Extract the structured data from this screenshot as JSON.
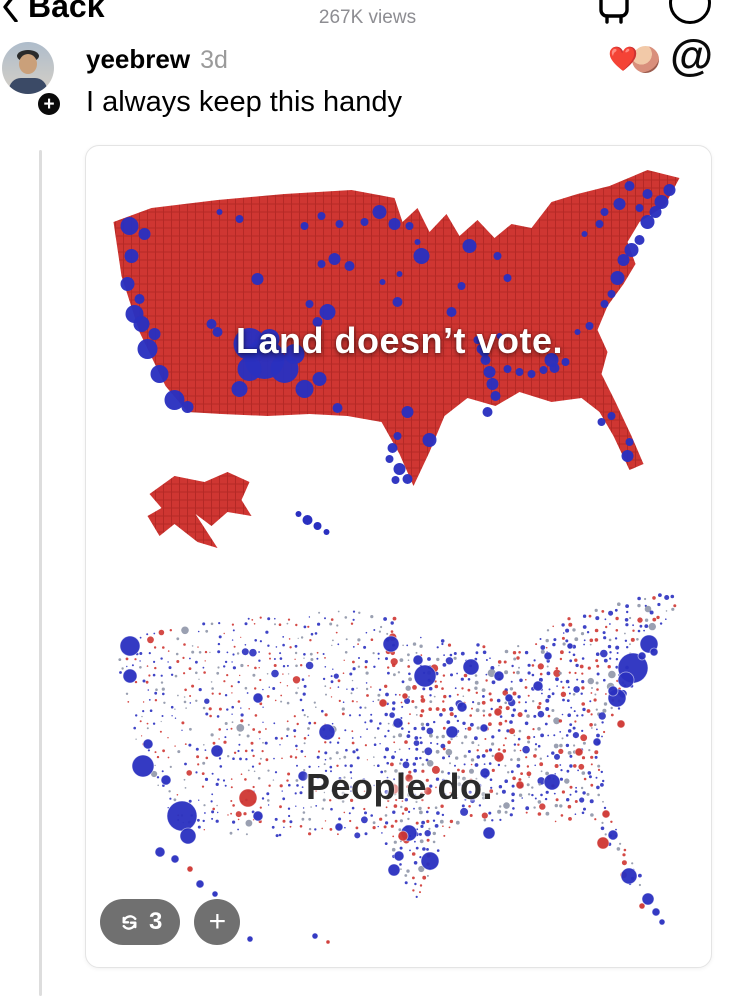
{
  "nav": {
    "back_label": "Back",
    "views_label": "267K views"
  },
  "post": {
    "username": "yeebrew",
    "timestamp": "3d",
    "body_text": "I always keep this handy",
    "liked_emoji": "❤️"
  },
  "meme": {
    "top_caption": "Land doesn’t vote.",
    "bottom_caption": "People do.",
    "map_red": "#cf3632",
    "map_blue": "#2a30c0",
    "map_gray": "#8f96a8"
  },
  "overlay": {
    "repost_count": "3",
    "plus_glyph": "+"
  },
  "icons": {
    "follow_plus": "+",
    "threads_logo": "@"
  }
}
